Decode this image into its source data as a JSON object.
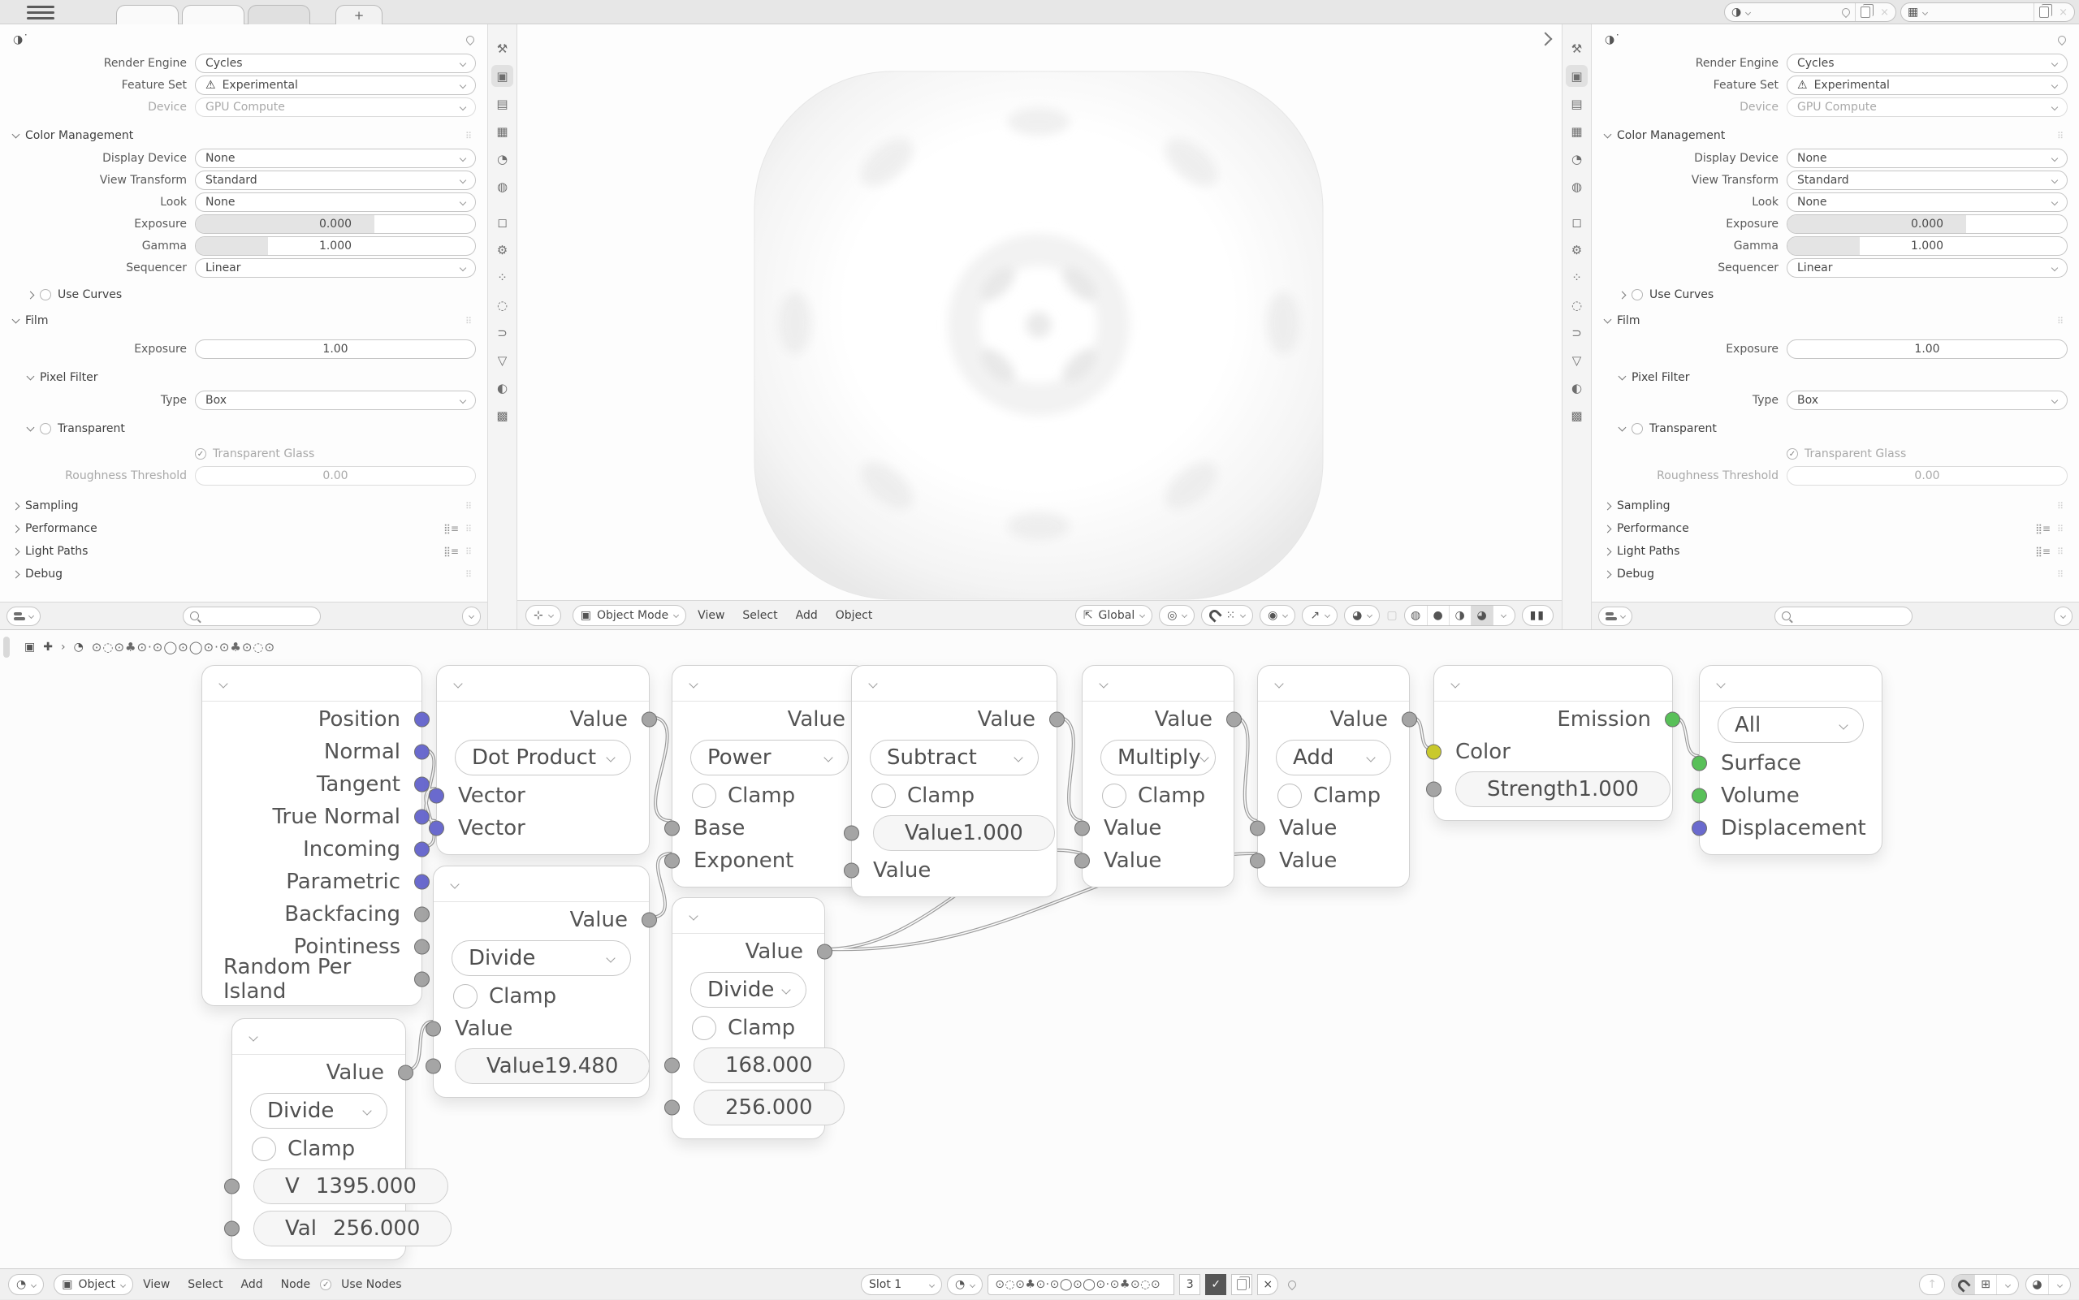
{
  "topbar": {
    "new_tab_label": "+"
  },
  "props": {
    "render_engine": {
      "label": "Render Engine",
      "value": "Cycles"
    },
    "feature_set": {
      "label": "Feature Set",
      "value": "Experimental",
      "warning_icon": "⚠"
    },
    "device": {
      "label": "Device",
      "value": "GPU Compute"
    },
    "color_management": {
      "title": "Color Management",
      "display_device": {
        "label": "Display Device",
        "value": "None"
      },
      "view_transform": {
        "label": "View Transform",
        "value": "Standard"
      },
      "look": {
        "label": "Look",
        "value": "None"
      },
      "exposure": {
        "label": "Exposure",
        "value": "0.000"
      },
      "gamma": {
        "label": "Gamma",
        "value": "1.000"
      },
      "sequencer": {
        "label": "Sequencer",
        "value": "Linear"
      }
    },
    "use_curves": {
      "label": "Use Curves"
    },
    "film": {
      "title": "Film",
      "exposure": {
        "label": "Exposure",
        "value": "1.00"
      },
      "pixel_filter_title": "Pixel Filter",
      "type": {
        "label": "Type",
        "value": "Box"
      },
      "transparent": {
        "label": "Transparent"
      },
      "transparent_glass": {
        "label": "Transparent Glass",
        "check": "✓"
      },
      "roughness_threshold": {
        "label": "Roughness Threshold",
        "value": "0.00"
      }
    },
    "sampling": "Sampling",
    "performance": "Performance",
    "light_paths": "Light Paths",
    "debug": "Debug"
  },
  "viewport": {
    "mode": "Object Mode",
    "menus": {
      "view": "View",
      "select": "Select",
      "add": "Add",
      "object": "Object"
    },
    "orientation": "Global"
  },
  "node_editor": {
    "breadcrumb": {
      "path_separator": "›",
      "material_name": "⊙◌⊙♣⊙·⊙◯⊙◯⊙·⊙♣⊙◌⊙"
    },
    "nodes": {
      "geometry": {
        "outputs": [
          "Position",
          "Normal",
          "Tangent",
          "True Normal",
          "Incoming",
          "Parametric",
          "Backfacing",
          "Pointiness",
          "Random Per Island"
        ]
      },
      "vector_math": {
        "output": "Value",
        "operation": "Dot Product",
        "input1": "Vector",
        "input2": "Vector"
      },
      "divide_a": {
        "output": "Value",
        "operation": "Divide",
        "clamp": "Clamp",
        "input": "Value",
        "field_label": "Value",
        "field_value": "19.480"
      },
      "power": {
        "output": "Value",
        "operation": "Power",
        "clamp": "Clamp",
        "input1": "Base",
        "input2": "Exponent"
      },
      "divide_b": {
        "output": "Value",
        "operation": "Divide",
        "clamp": "Clamp",
        "field1": "168.000",
        "field2": "256.000"
      },
      "subtract": {
        "output": "Value",
        "operation": "Subtract",
        "clamp": "Clamp",
        "field_label": "Value",
        "field_value": "1.000",
        "input": "Value"
      },
      "multiply": {
        "output": "Value",
        "operation": "Multiply",
        "clamp": "Clamp",
        "input1": "Value",
        "input2": "Value"
      },
      "add": {
        "output": "Value",
        "operation": "Add",
        "clamp": "Clamp",
        "input1": "Value",
        "input2": "Value"
      },
      "emission": {
        "output": "Emission",
        "color_input": "Color",
        "strength_label": "Strength",
        "strength_value": "1.000"
      },
      "material_output": {
        "target": "All",
        "input1": "Surface",
        "input2": "Volume",
        "input3": "Displacement"
      },
      "divide_c": {
        "output": "Value",
        "operation": "Divide",
        "clamp": "Clamp",
        "field1_label": "V",
        "field1_value": "1395.000",
        "field2_label": "Val",
        "field2_value": "256.000"
      }
    },
    "footer": {
      "shader_type": "Object",
      "menus": {
        "view": "View",
        "select": "Select",
        "add": "Add",
        "node": "Node"
      },
      "use_nodes": "Use Nodes",
      "slot": "Slot 1",
      "material_name": "⊙◌⊙♣⊙·⊙◯⊙◯⊙·⊙♣⊙◌⊙",
      "users_count": "3",
      "unlink": "×"
    }
  },
  "colors": {
    "vector_socket": "#6a6ace",
    "value_socket": "#a5a5a5",
    "color_socket": "#c9c92c",
    "shader_socket": "#58c058"
  }
}
